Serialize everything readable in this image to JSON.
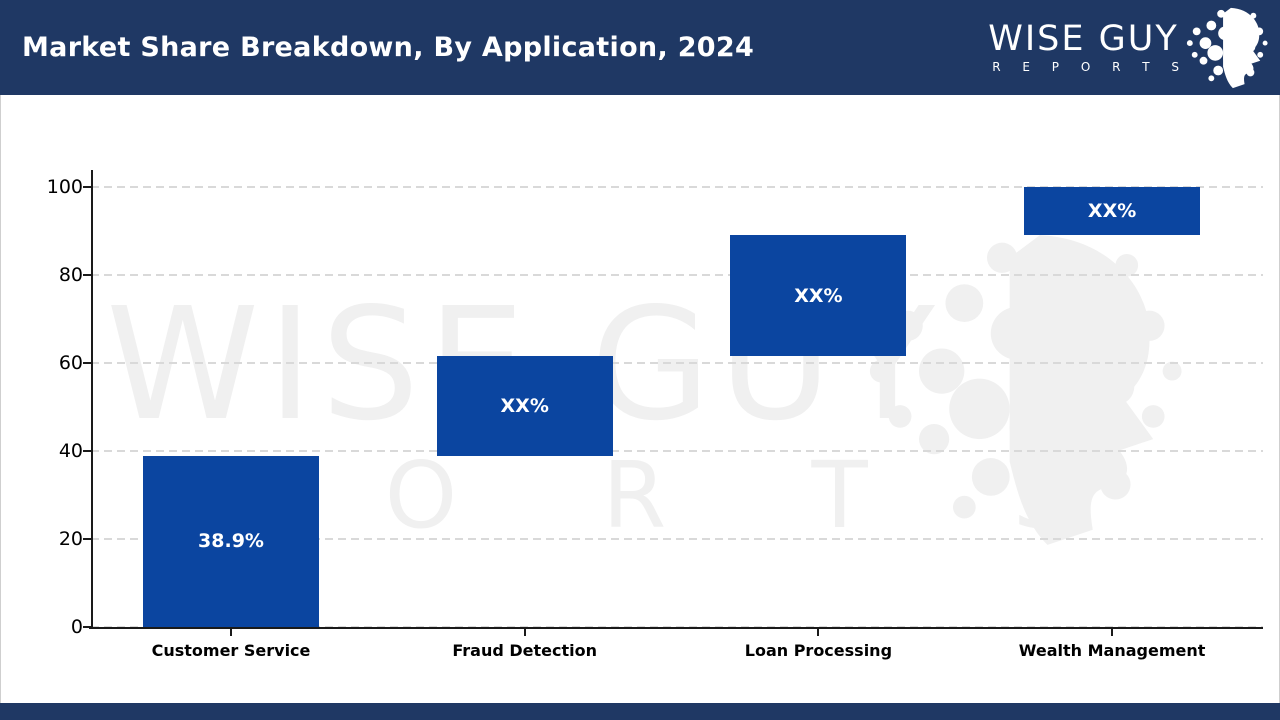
{
  "header": {
    "title": "Market Share Breakdown, By Application, 2024",
    "logo": {
      "line1": "WISE GUY",
      "line2": "R E P O R T S"
    }
  },
  "watermark": {
    "line1": "WISE GUY",
    "line2": "P O R T S"
  },
  "colors": {
    "header_bg": "#1f3864",
    "footer_bg": "#1f3864",
    "bar_fill": "#0b45a0",
    "bar_label": "#ffffff",
    "grid_line": "#d9d9d9",
    "axis_line": "#1a1a1a",
    "watermark": "#f0f0f0"
  },
  "chart_data": {
    "type": "bar",
    "subtype": "waterfall-style floating segment bars",
    "title": "Market Share Breakdown, By Application, 2024",
    "categories": [
      "Customer Service",
      "Fraud Detection",
      "Loan Processing",
      "Wealth Management"
    ],
    "series": [
      {
        "name": "Market Share",
        "segments": [
          {
            "category": "Customer Service",
            "start": 0,
            "end": 38.9,
            "label": "38.9%"
          },
          {
            "category": "Fraud Detection",
            "start": 38.9,
            "end": 61.5,
            "label": "XX%"
          },
          {
            "category": "Loan Processing",
            "start": 61.5,
            "end": 89.0,
            "label": "XX%"
          },
          {
            "category": "Wealth Management",
            "start": 89.0,
            "end": 100.0,
            "label": "XX%"
          }
        ]
      }
    ],
    "xlabel": "",
    "ylabel": "",
    "ylim": [
      0,
      105
    ],
    "y_ticks": [
      0,
      20,
      40,
      60,
      80,
      100
    ],
    "grid": "horizontal dashed",
    "legend": "none"
  }
}
